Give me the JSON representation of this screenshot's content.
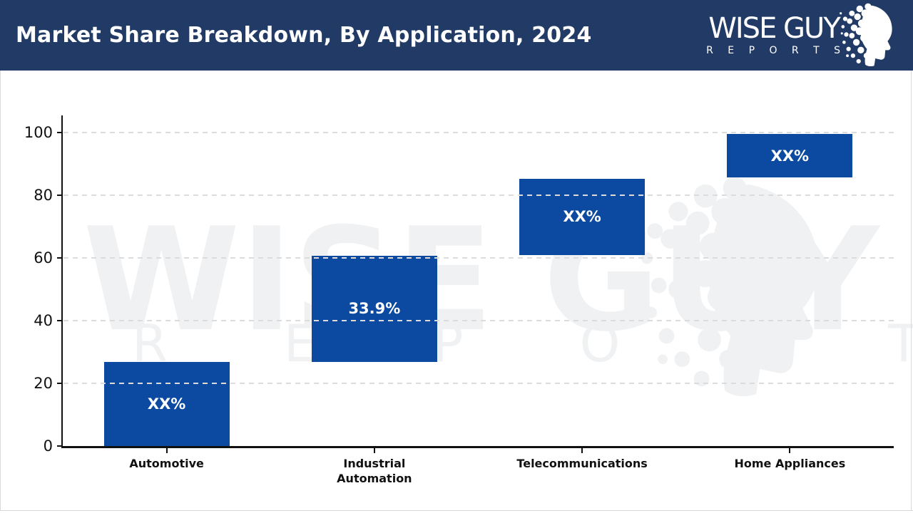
{
  "header": {
    "title": "Market Share Breakdown, By Application, 2024",
    "logo": {
      "line1": "WISE GUY",
      "line2": "R E P O R T S",
      "icon": "dotted-head-profile"
    }
  },
  "watermark": {
    "line1": "WISE GUY",
    "line2": "R E P O R T S",
    "icon": "dotted-head-profile"
  },
  "colors": {
    "header_bg": "#213a66",
    "bar": "#0b4aa0",
    "grid": "#dcdcdc",
    "axis": "#111111",
    "bar_label": "#ffffff",
    "tick_label": "#111111",
    "category_label": "#111111",
    "watermark": "#f0f1f3",
    "edge": "#d9d9d9"
  },
  "chart_data": {
    "type": "bar",
    "subtype": "floating-waterfall",
    "title": "Market Share Breakdown, By Application, 2024",
    "categories": [
      "Automotive",
      "Industrial Automation",
      "Telecommunications",
      "Home Appliances"
    ],
    "xtick_labels": [
      "Automotive",
      "Industrial\nAutomation",
      "Telecommunications",
      "Home Appliances"
    ],
    "segments": [
      {
        "category": "Automotive",
        "start": 0,
        "end": 26.8,
        "label": "XX%"
      },
      {
        "category": "Industrial Automation",
        "start": 26.8,
        "end": 60.7,
        "label": "33.9%"
      },
      {
        "category": "Telecommunications",
        "start": 61.0,
        "end": 85.3,
        "label": "XX%"
      },
      {
        "category": "Home Appliances",
        "start": 85.6,
        "end": 99.6,
        "label": "XX%"
      }
    ],
    "ylim": [
      0,
      105
    ],
    "yticks": [
      0,
      20,
      40,
      60,
      80,
      100
    ],
    "grid": "dashed-horizontal-over-bars",
    "legend": "none",
    "xlabel": "",
    "ylabel": ""
  }
}
